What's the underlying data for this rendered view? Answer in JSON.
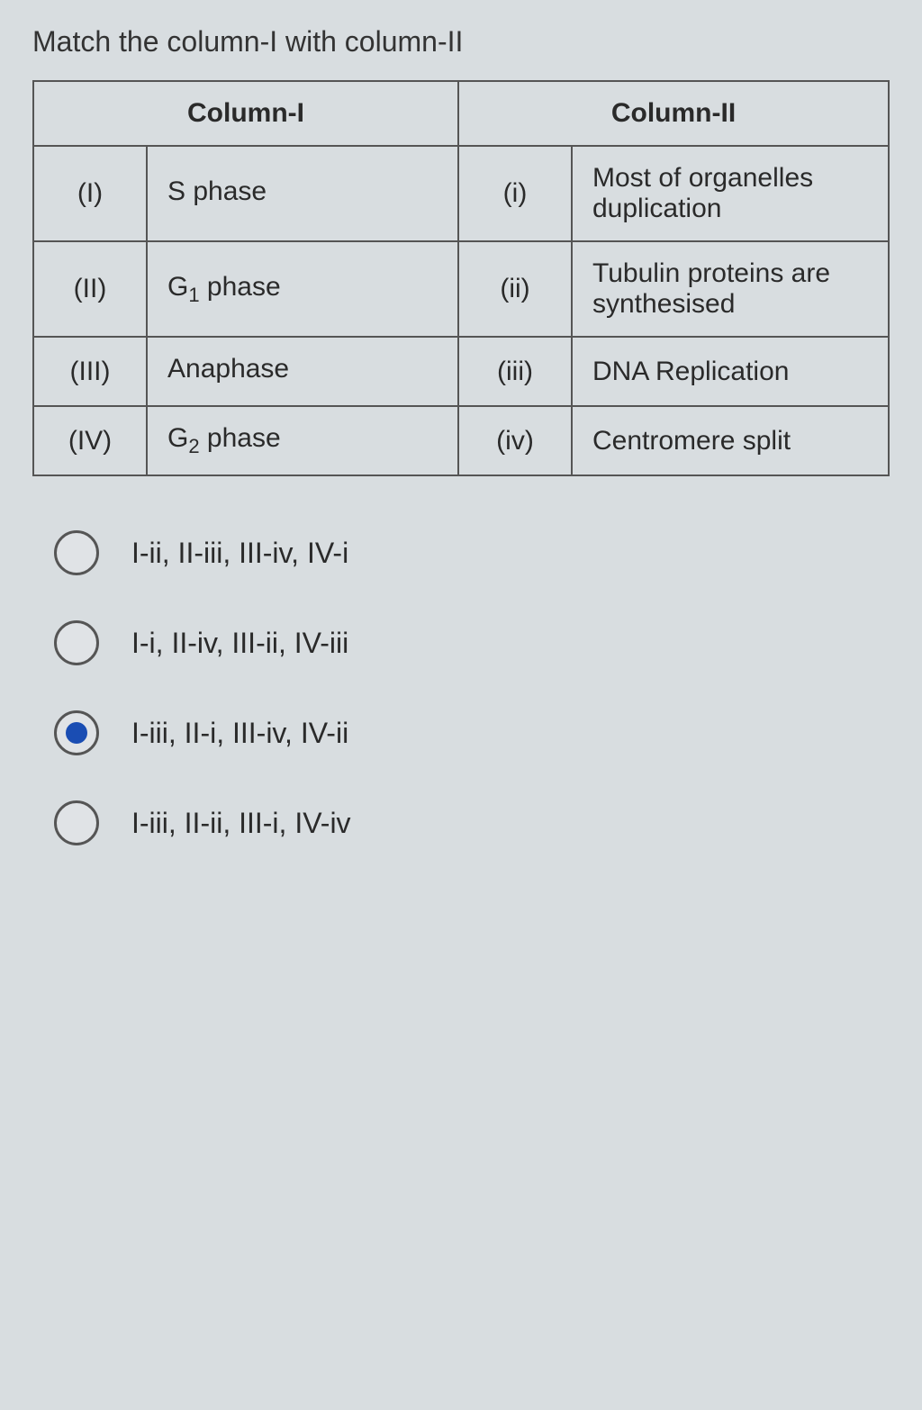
{
  "question": "Match the column-I with column-II",
  "table": {
    "headers": {
      "col1": "Column-I",
      "col2": "Column-II"
    },
    "rows": [
      {
        "roman": "(I)",
        "left_pre": "S phase",
        "left_sub": "",
        "left_post": "",
        "arabic": "(i)",
        "right": "Most of organelles duplication"
      },
      {
        "roman": "(II)",
        "left_pre": "G",
        "left_sub": "1",
        "left_post": " phase",
        "arabic": "(ii)",
        "right": "Tubulin proteins are synthesised"
      },
      {
        "roman": "(III)",
        "left_pre": "Anaphase",
        "left_sub": "",
        "left_post": "",
        "arabic": "(iii)",
        "right": "DNA Replication"
      },
      {
        "roman": "(IV)",
        "left_pre": "G",
        "left_sub": "2",
        "left_post": " phase",
        "arabic": "(iv)",
        "right": "Centromere split"
      }
    ]
  },
  "options": [
    {
      "label": "I-ii, II-iii, III-iv, IV-i",
      "selected": false
    },
    {
      "label": "I-i, II-iv, III-ii, IV-iii",
      "selected": false
    },
    {
      "label": "I-iii, II-i, III-iv, IV-ii",
      "selected": true
    },
    {
      "label": "I-iii, II-ii, III-i, IV-iv",
      "selected": false
    }
  ]
}
